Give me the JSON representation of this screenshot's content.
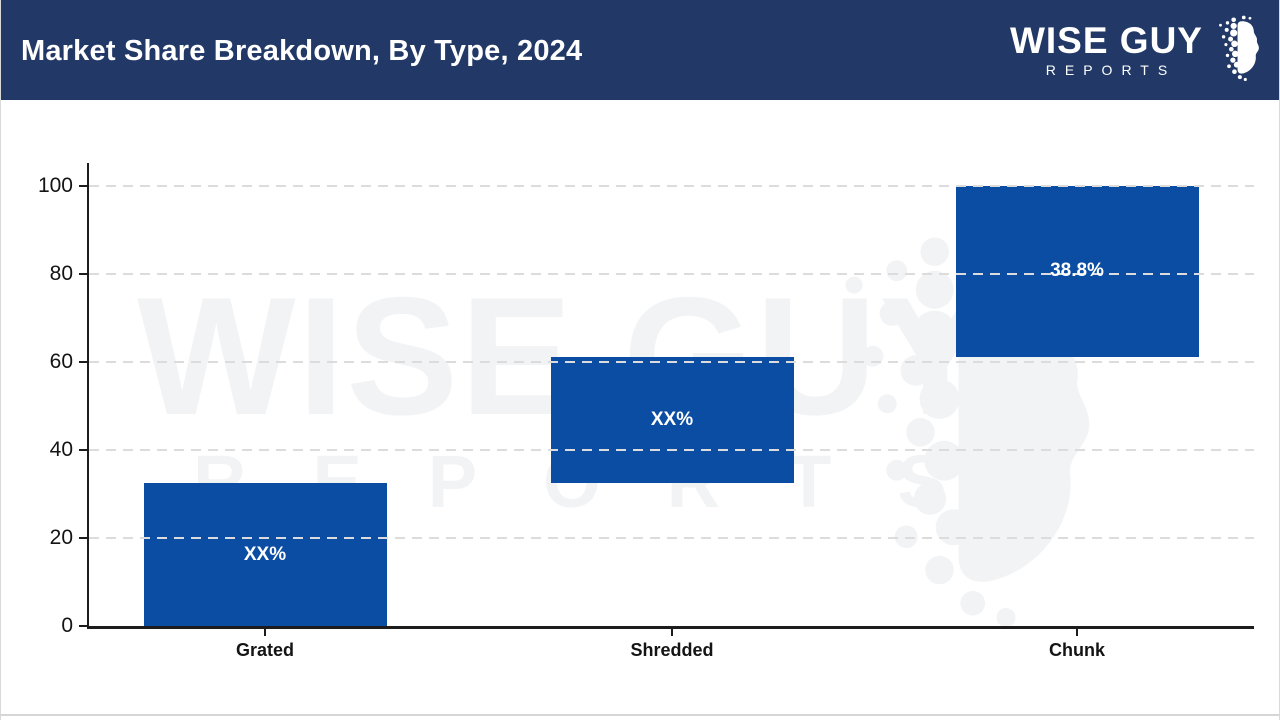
{
  "header": {
    "title": "Market Share Breakdown, By Type, 2024",
    "bg_color": "#223866",
    "text_color": "#ffffff",
    "brand": {
      "name": "WISE GUY",
      "sub": "REPORTS"
    }
  },
  "watermark": {
    "line1": "WISE GUY",
    "line2": "REPORTS",
    "color": "#f2f3f5"
  },
  "chart_data": {
    "type": "bar",
    "variant": "waterfall",
    "title": "Market Share Breakdown, By Type, 2024",
    "categories": [
      "Grated",
      "Shredded",
      "Chunk"
    ],
    "values": [
      32.4,
      28.8,
      38.8
    ],
    "cumulative_ranges": [
      [
        0,
        32.4
      ],
      [
        32.4,
        61.2
      ],
      [
        61.2,
        100
      ]
    ],
    "bar_labels": [
      "XX%",
      "XX%",
      "38.8%"
    ],
    "xlabel": "",
    "ylabel": "",
    "ylim": [
      0,
      100
    ],
    "yticks": [
      0,
      20,
      40,
      60,
      80,
      100
    ],
    "grid": "horizontal-dashed",
    "legend": "none",
    "bar_color": "#0a4da2",
    "bar_label_color": "#ffffff",
    "gridline_color": "#dcdcdc",
    "axis_color": "#1c1c1c",
    "tick_label_color": "#141414"
  }
}
